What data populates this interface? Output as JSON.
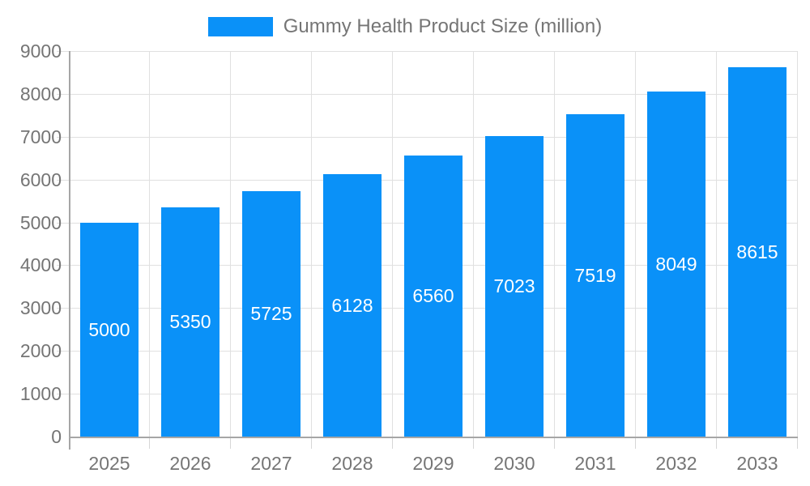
{
  "chart_data": {
    "type": "bar",
    "title": "",
    "series_name": "Gummy Health Product Size (million)",
    "categories": [
      "2025",
      "2026",
      "2027",
      "2028",
      "2029",
      "2030",
      "2031",
      "2032",
      "2033"
    ],
    "values": [
      5000,
      5350,
      5725,
      6128,
      6560,
      7023,
      7519,
      8049,
      8615
    ],
    "xlabel": "",
    "ylabel": "",
    "ylim": [
      0,
      9000
    ],
    "ytick_step": 1000,
    "yticks": [
      0,
      1000,
      2000,
      3000,
      4000,
      5000,
      6000,
      7000,
      8000,
      9000
    ],
    "grid": true,
    "legend_position": "top",
    "bar_value_labels_visible": true
  },
  "legend": {
    "label": "Gummy Health Product Size (million)"
  },
  "colors": {
    "bar": "#0a91f8",
    "grid": "#e0e0e0",
    "axis": "#a6a6a6",
    "tick": "#d6d6d6",
    "axis_text": "#757575",
    "value_label": "#ffffff",
    "background": "#ffffff"
  }
}
